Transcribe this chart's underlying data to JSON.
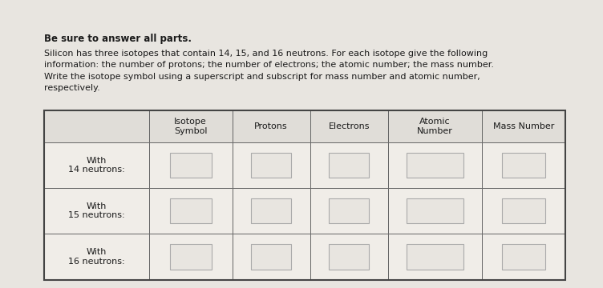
{
  "title_line1": "Be sure to answer all parts.",
  "body_text": "Silicon has three isotopes that contain 14, 15, and 16 neutrons. For each isotope give the following\ninformation: the number of protons; the number of electrons; the atomic number; the mass number.\nWrite the isotope symbol using a superscript and subscript for mass number and atomic number,\nrespectively.",
  "col_headers": [
    "Isotope\nSymbol",
    "Protons",
    "Electrons",
    "Atomic\nNumber",
    "Mass Number"
  ],
  "row_labels": [
    "With\n14 neutrons:",
    "With\n15 neutrons:",
    "With\n16 neutrons:"
  ],
  "page_bg": "#e8e5e0",
  "table_cell_bg": "#f0ede8",
  "header_cell_bg": "#e0ddd8",
  "input_box_bg": "#e8e5e0",
  "input_box_edge": "#aaaaaa",
  "cell_edge": "#666666",
  "outer_edge": "#444444",
  "text_color": "#1a1a1a",
  "font_size_title": 8.5,
  "font_size_body": 8.0,
  "font_size_table": 8.0,
  "fig_width": 7.52,
  "fig_height": 3.6
}
